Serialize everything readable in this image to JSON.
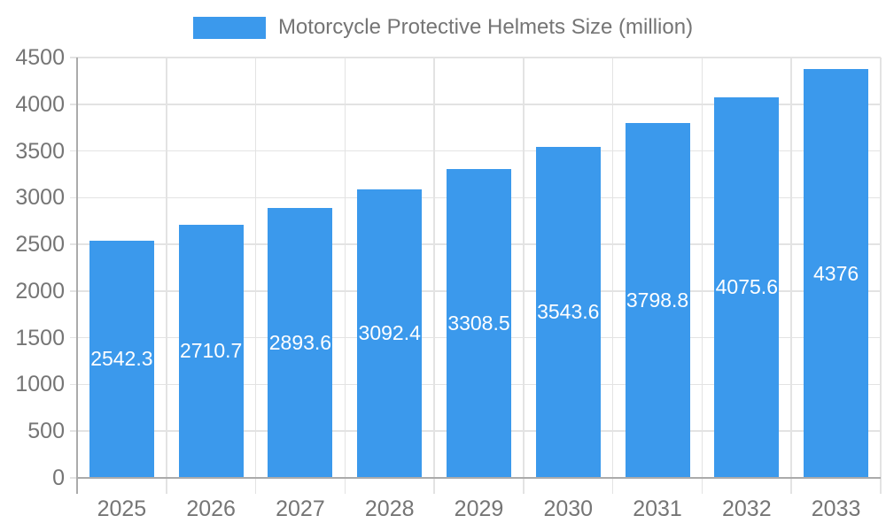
{
  "legend": {
    "label": "Motorcycle Protective Helmets Size (million)"
  },
  "chart_data": {
    "type": "bar",
    "title": "",
    "categories": [
      "2025",
      "2026",
      "2027",
      "2028",
      "2029",
      "2030",
      "2031",
      "2032",
      "2033"
    ],
    "series": [
      {
        "name": "Motorcycle Protective Helmets Size (million)",
        "values": [
          2542.3,
          2710.7,
          2893.6,
          3092.4,
          3308.5,
          3543.6,
          3798.8,
          4075.6,
          4376
        ]
      }
    ],
    "value_labels": [
      "2542.3",
      "2710.7",
      "2893.6",
      "3092.4",
      "3308.5",
      "3543.6",
      "3798.8",
      "4075.6",
      "4376"
    ],
    "xlabel": "",
    "ylabel": "",
    "ylim": [
      0,
      4500
    ],
    "y_ticks": [
      0,
      500,
      1000,
      1500,
      2000,
      2500,
      3000,
      3500,
      4000,
      4500
    ],
    "grid": true,
    "legend_position": "top-center",
    "colors": {
      "bar": "#3B99EC",
      "bar_label": "#FFFFFF",
      "axis_text": "#757575",
      "grid_line": "#E3E3E3",
      "axis_line": "#ABABAB"
    }
  }
}
